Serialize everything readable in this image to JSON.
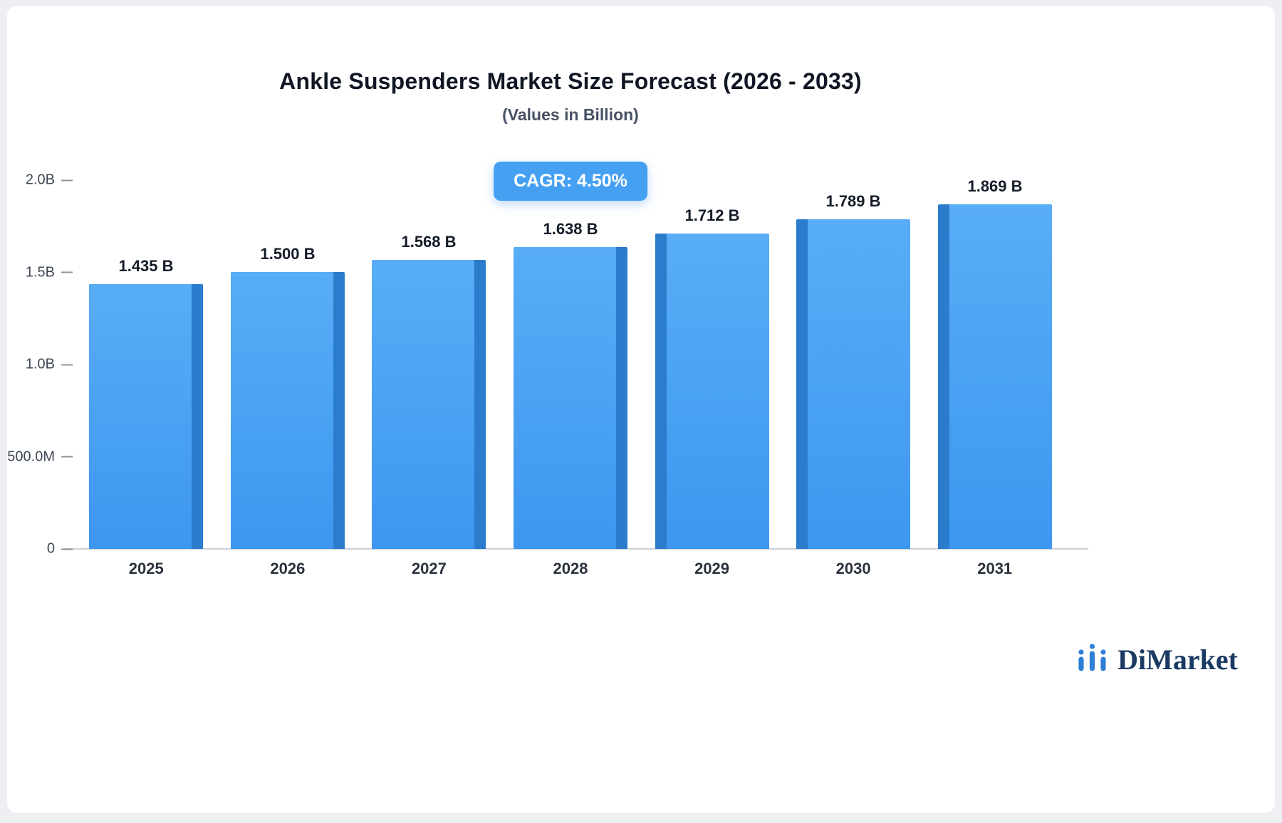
{
  "header": {
    "title": "Ankle Suspenders Market Size Forecast (2026 - 2033)",
    "subtitle": "(Values in Billion)",
    "cagr_badge": "CAGR: 4.50%"
  },
  "chart_data": {
    "type": "bar",
    "title": "Ankle Suspenders Market Size Forecast (2026 - 2033)",
    "subtitle": "(Values in Billion)",
    "annotation": "CAGR: 4.50%",
    "categories": [
      "2025",
      "2026",
      "2027",
      "2028",
      "2029",
      "2030",
      "2031"
    ],
    "values": [
      1.435,
      1.5,
      1.568,
      1.638,
      1.712,
      1.789,
      1.869
    ],
    "value_labels": [
      "1.435 B",
      "1.500 B",
      "1.568 B",
      "1.638 B",
      "1.712 B",
      "1.789 B",
      "1.869 B"
    ],
    "ylim": [
      0,
      2
    ],
    "yticks": [
      {
        "label": "2.0B",
        "value": 2.0
      },
      {
        "label": "1.5B",
        "value": 1.5
      },
      {
        "label": "1.0B",
        "value": 1.0
      },
      {
        "label": "500.0M",
        "value": 0.5
      },
      {
        "label": "0",
        "value": 0
      }
    ],
    "grid": false,
    "legend_position": "none",
    "colors": {
      "bar_top": "#58adf6",
      "bar_bottom": "#3d97f0",
      "bar_side": "#2b7ccd",
      "badge_bg": "#46a0f2",
      "logo_blue": "#2e7fd6"
    }
  },
  "footer": {
    "logo_text": "DiMarket"
  }
}
